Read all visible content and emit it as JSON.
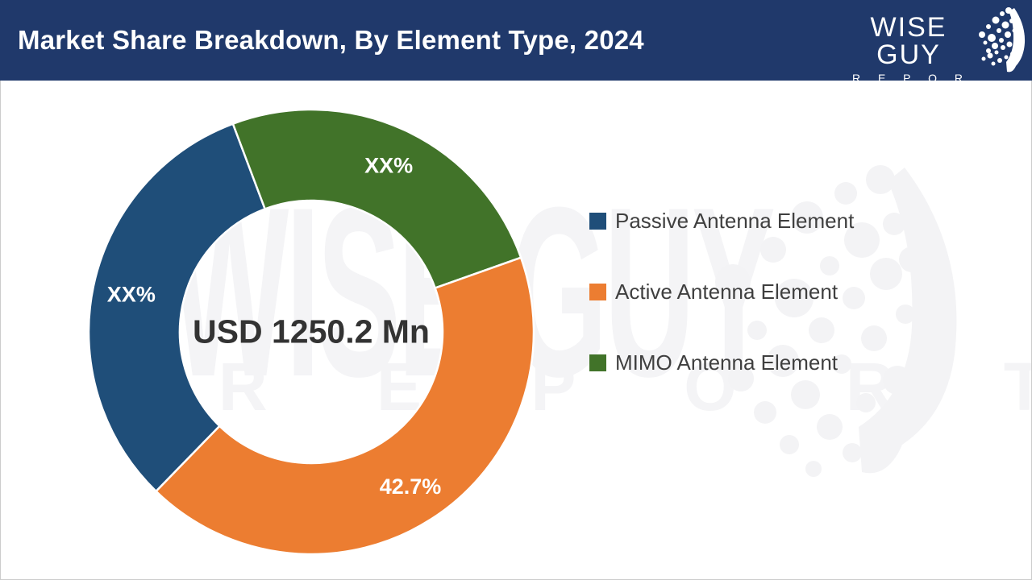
{
  "header": {
    "title": "Market Share Breakdown, By Element Type, 2024",
    "logo": {
      "line1": "WISE GUY",
      "line2": "R E P O R T S"
    }
  },
  "watermark": {
    "line1": "WISE GUY",
    "line2": "R E P O R T S"
  },
  "chart_data": {
    "type": "pie",
    "subtype": "donut",
    "title": "Market Share Breakdown, By Element Type, 2024",
    "center_label": "USD 1250.2 Mn",
    "start_angle_deg": 224.2,
    "direction": "clockwise",
    "slices": [
      {
        "name": "Passive Antenna Element",
        "value": 32.0,
        "display_label": "XX%",
        "color": "#1F4E79"
      },
      {
        "name": "MIMO Antenna Element",
        "value": 25.3,
        "display_label": "XX%",
        "color": "#417329"
      },
      {
        "name": "Active Antenna Element",
        "value": 42.7,
        "display_label": "42.7%",
        "color": "#EC7D31"
      }
    ],
    "legend": [
      {
        "label": "Passive Antenna Element",
        "color": "#1F4E79"
      },
      {
        "label": "Active Antenna Element",
        "color": "#EC7D31"
      },
      {
        "label": "MIMO Antenna Element",
        "color": "#417329"
      }
    ],
    "legend_position": "right",
    "grid": false
  },
  "colors": {
    "header_bg": "#20396B",
    "center_text": "#333333",
    "legend_text": "#3F3F3F",
    "border": "#CCCCCC",
    "watermark": "#F4F4F6",
    "slice_label_text": "#FFFFFF"
  }
}
